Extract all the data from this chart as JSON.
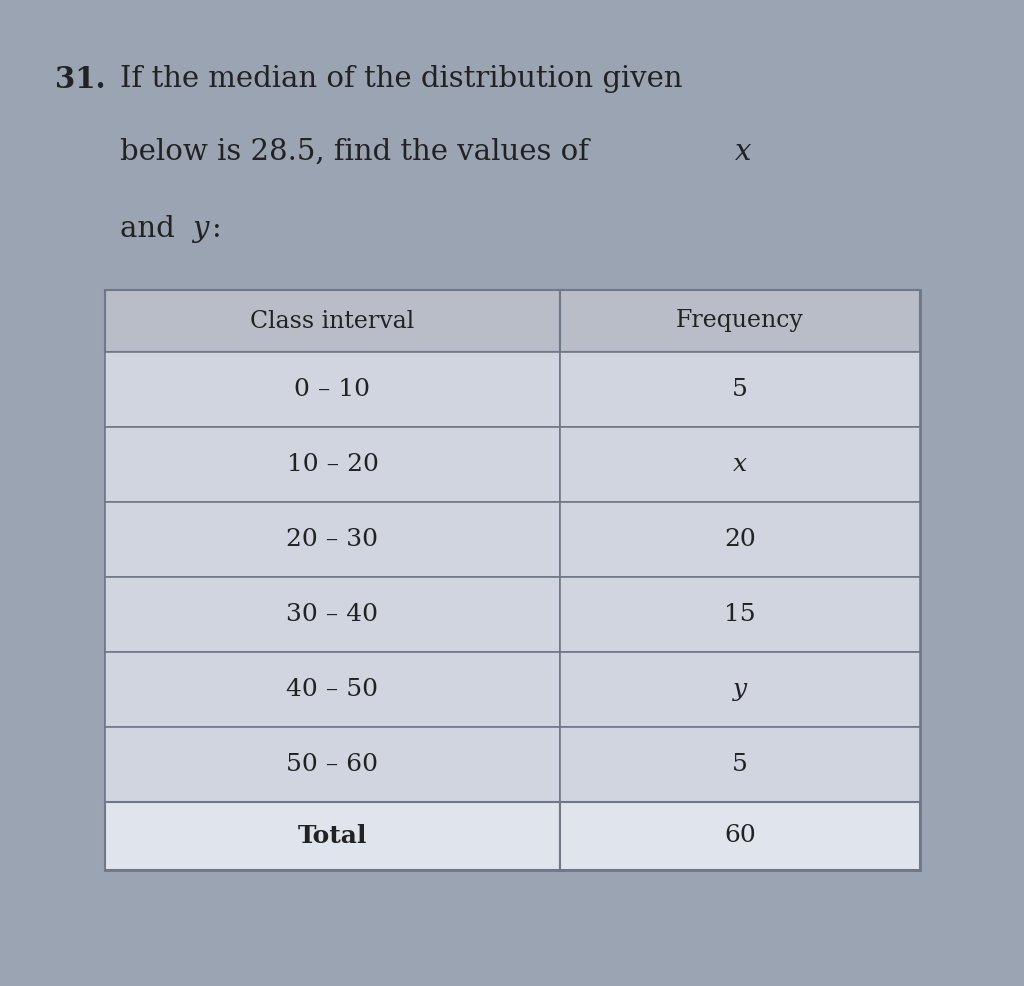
{
  "col_headers": [
    "Class interval",
    "Frequency"
  ],
  "rows": [
    [
      "0 – 10",
      "5"
    ],
    [
      "10 – 20",
      "x"
    ],
    [
      "20 – 30",
      "20"
    ],
    [
      "30 – 40",
      "15"
    ],
    [
      "40 – 50",
      "y"
    ],
    [
      "50 – 60",
      "5"
    ]
  ],
  "total_row": [
    "Total",
    "60"
  ],
  "figure_bg": "#9aa4b2",
  "table_outer_bg": "#c8cdd8",
  "header_bg": "#b8bdc8",
  "cell_bg": "#d0d5e0",
  "total_bg": "#e0e4ec",
  "border_color": "#707888",
  "text_color": "#222222",
  "title_number": "31.",
  "title_line1": "If the median of the distribution given",
  "title_line2_pre": "below is 28.5, find the values of ",
  "title_line2_x": "x",
  "title_line3_pre": "and ",
  "title_line3_y": "y",
  "title_line3_post": ":",
  "title_fontsize": 21,
  "header_fontsize": 17,
  "cell_fontsize": 18,
  "total_fontsize": 18
}
